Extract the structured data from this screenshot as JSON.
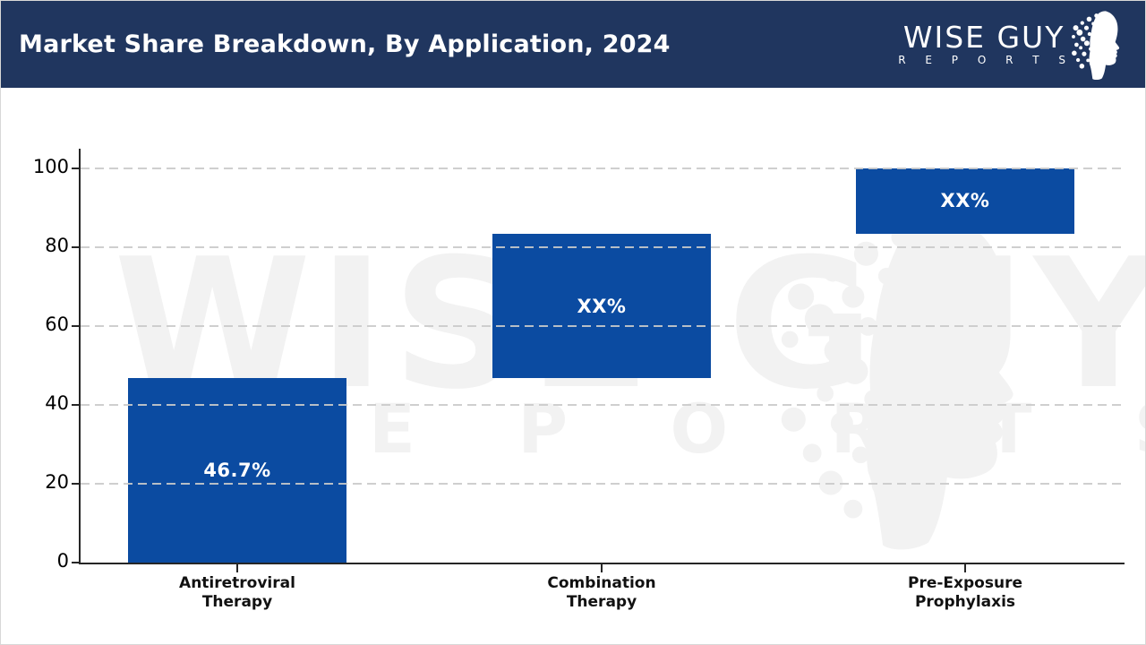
{
  "header": {
    "title": "Market Share Breakdown, By Application, 2024",
    "logo": {
      "line1": "WISE GUY",
      "line2": "R E P O R T S"
    }
  },
  "watermark": {
    "line1": "WISE GUY",
    "line2": "R E P O R T S"
  },
  "colors": {
    "header_bg": "#20365f",
    "bar": "#0b4ba1",
    "grid": "#cccccc",
    "bar_label": "#ffffff"
  },
  "chart_data": {
    "type": "bar",
    "subtype": "waterfall",
    "title": "Market Share Breakdown, By Application, 2024",
    "categories": [
      "Antiretroviral\nTherapy",
      "Combination\nTherapy",
      "Pre-Exposure\nProphylaxis"
    ],
    "segments": [
      {
        "category": "Antiretroviral Therapy",
        "start": 0,
        "end": 46.7,
        "value": 46.7,
        "label": "46.7%"
      },
      {
        "category": "Combination Therapy",
        "start": 46.7,
        "end": 83.3,
        "value": 36.6,
        "label": "XX%"
      },
      {
        "category": "Pre-Exposure Prophylaxis",
        "start": 83.3,
        "end": 100,
        "value": 16.7,
        "label": "XX%"
      }
    ],
    "yticks": [
      0,
      20,
      40,
      60,
      80,
      100
    ],
    "ylim": [
      0,
      100
    ],
    "xlabel": "",
    "ylabel": "",
    "grid": "horizontal dashed",
    "legend": "none"
  }
}
